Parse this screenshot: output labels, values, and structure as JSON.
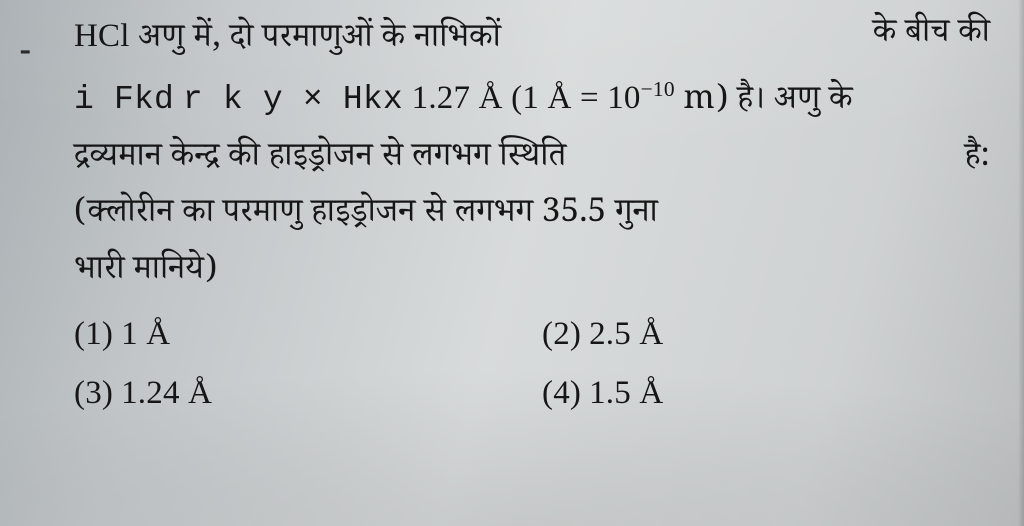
{
  "colors": {
    "text": "#161616",
    "bg_left": "#aab0b4",
    "bg_mid": "#d8dbdb",
    "bg_right": "#babdbe"
  },
  "typography": {
    "body_fontsize_pt": 25,
    "line_height": 1.72,
    "family": "serif / Devanagari"
  },
  "lines": {
    "l1_a": "HCl",
    "l1_b": "अणु में, दो परमाणुओं के नाभिकों",
    "l1_c": "के बीच की",
    "l2_a": "i Fkd",
    "l2_b": "r k y × Hkx",
    "l2_c": "1.27 Å (1 Å = 10",
    "l2_sup": "−10",
    "l2_d": " m) है। अणु के",
    "l3_a": "द्रव्यमान केन्द्र की हाइड्रोजन से लगभग स्थिति",
    "l3_b": "है:",
    "l4": "(क्लोरीन का परमाणु हाइड्रोजन से लगभग 35.5 गुना",
    "l5": "भारी मानिये)"
  },
  "options": {
    "n1": "(1)",
    "v1": "1 Å",
    "n2": "(2)",
    "v2": "2.5 Å",
    "n3": "(3)",
    "v3": "1.24 Å",
    "n4": "(4)",
    "v4": "1.5 Å"
  }
}
